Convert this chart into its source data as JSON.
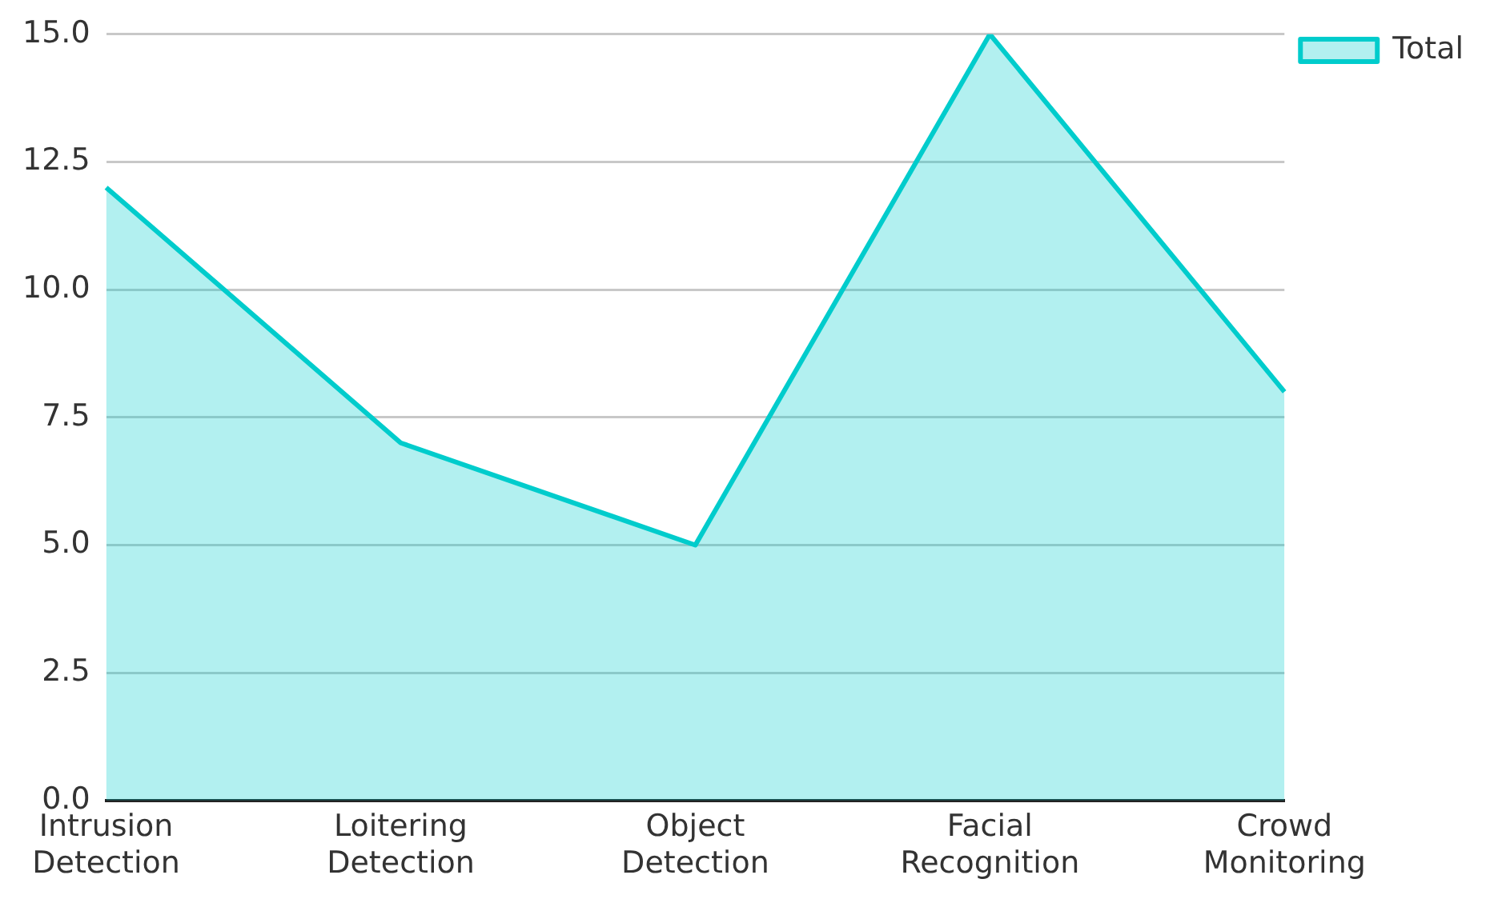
{
  "chart_data": {
    "type": "area",
    "categories": [
      "Intrusion Detection",
      "Loitering Detection",
      "Object Detection",
      "Facial Recognition",
      "Crowd Monitoring"
    ],
    "series": [
      {
        "name": "Total",
        "color": "#00cccc",
        "values": [
          12,
          7,
          5,
          15,
          8
        ]
      }
    ],
    "ylim": [
      0,
      15
    ],
    "yticks": [
      {
        "value": 0,
        "label": "0.0"
      },
      2.5,
      {
        "value": 5,
        "label": "5.0"
      },
      7.5,
      {
        "value": 10,
        "label": "10.0"
      },
      12.5,
      {
        "value": 15,
        "label": "15.0"
      }
    ],
    "grid": "y",
    "legend": "top right"
  }
}
